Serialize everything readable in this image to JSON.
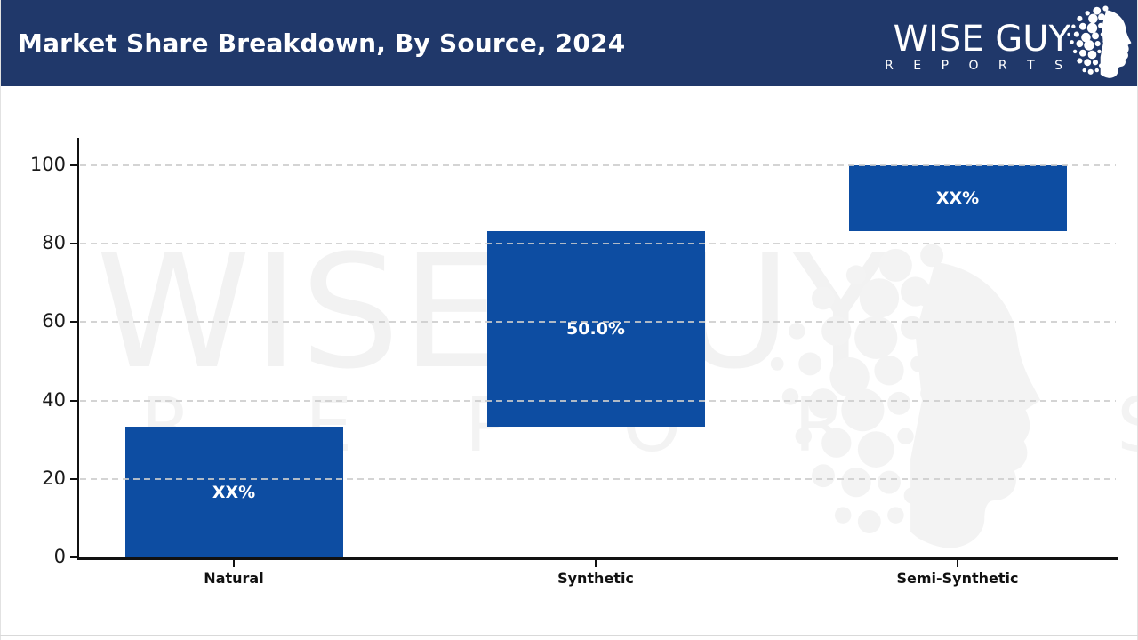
{
  "header": {
    "title": "Market Share Breakdown, By Source, 2024",
    "bg_color": "#20386a",
    "logo": {
      "wordmark": "WISE GUY",
      "subtext": "R E P O R T S"
    }
  },
  "watermark": {
    "wordmark": "WISE GUY",
    "subtext": "R E P O R T S"
  },
  "chart_data": {
    "type": "bar",
    "subtype": "floating-segment-waterfall",
    "title": "Market Share Breakdown, By Source, 2024",
    "categories": [
      "Natural",
      "Synthetic",
      "Semi-Synthetic"
    ],
    "bars": [
      {
        "category": "Natural",
        "start": 0,
        "end": 33.3,
        "label": "XX%"
      },
      {
        "category": "Synthetic",
        "start": 33.3,
        "end": 83.3,
        "label": "50.0%"
      },
      {
        "category": "Semi-Synthetic",
        "start": 83.3,
        "end": 100,
        "label": "XX%"
      }
    ],
    "ylim": [
      0,
      100
    ],
    "yticks": [
      0,
      20,
      40,
      60,
      80,
      100
    ],
    "xlabel": "",
    "ylabel": "",
    "grid": {
      "axis": "y",
      "style": "dashed",
      "color": "#d9d9d9",
      "drawn_over_bars": true
    },
    "legend": "none",
    "bar_color": "#0d4da2",
    "bar_label_color": "#ffffff",
    "axis_color": "#111111",
    "tick_label_color": "#1a1a1a"
  }
}
